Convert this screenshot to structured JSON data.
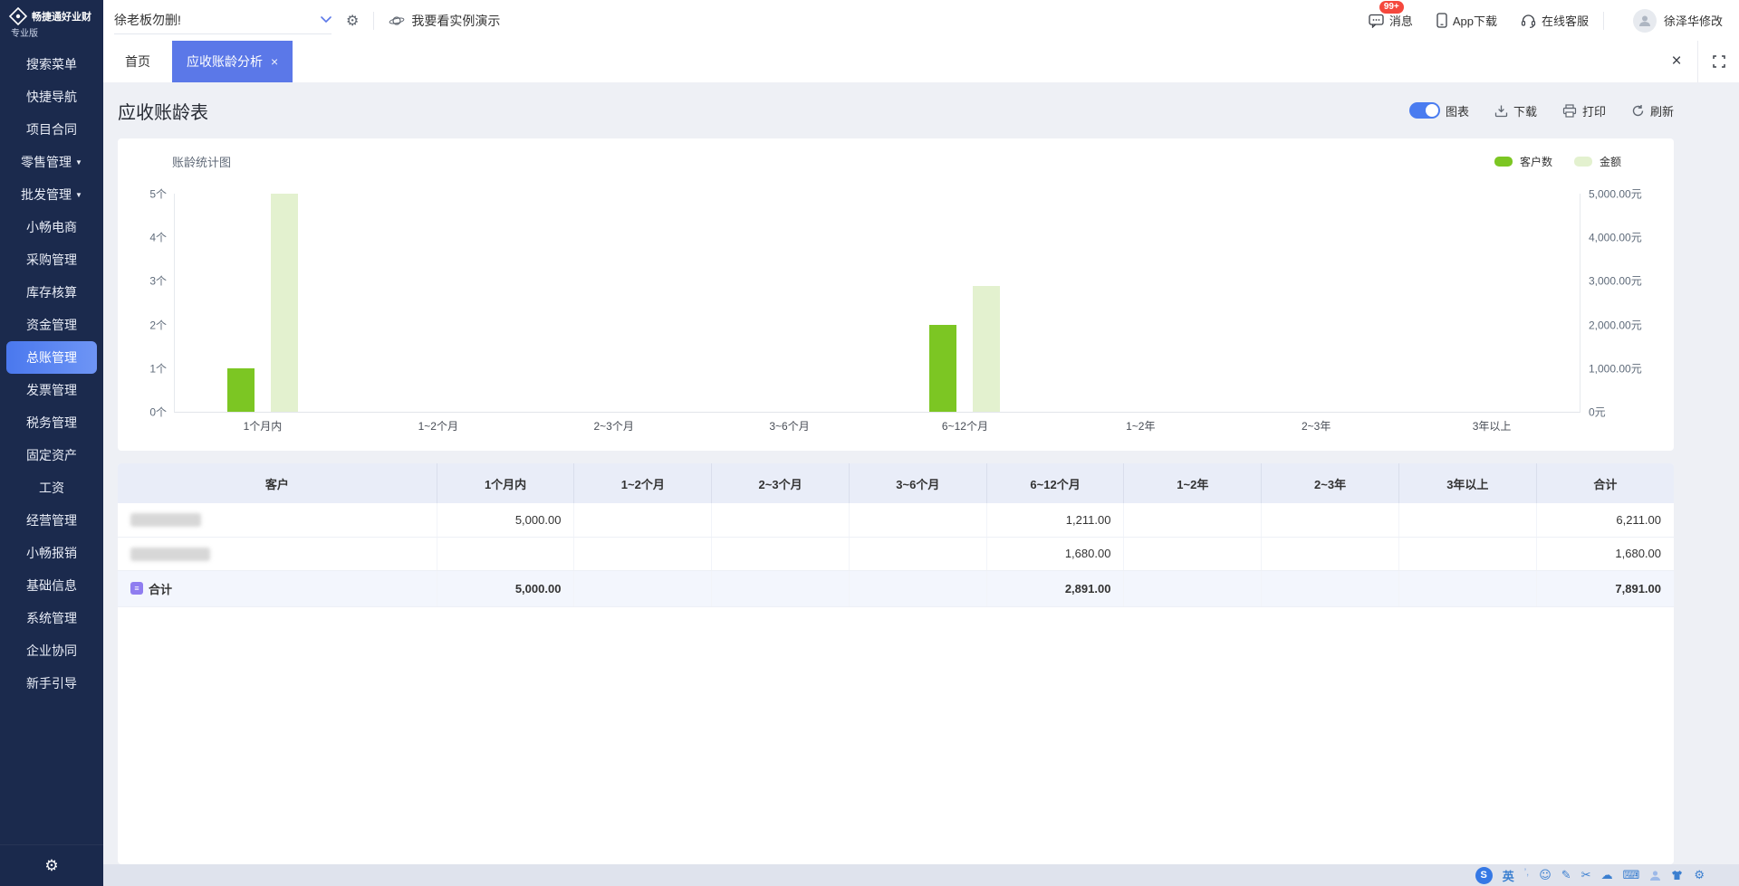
{
  "sidebar": {
    "brand": "畅捷通好业财",
    "edition": "专业版",
    "items": [
      {
        "label": "搜索菜单"
      },
      {
        "label": "快捷导航"
      },
      {
        "label": "项目合同"
      },
      {
        "label": "零售管理",
        "arrow": true
      },
      {
        "label": "批发管理",
        "arrow": true
      },
      {
        "label": "小畅电商"
      },
      {
        "label": "采购管理"
      },
      {
        "label": "库存核算"
      },
      {
        "label": "资金管理"
      },
      {
        "label": "总账管理",
        "active": true
      },
      {
        "label": "发票管理"
      },
      {
        "label": "税务管理"
      },
      {
        "label": "固定资产"
      },
      {
        "label": "工资"
      },
      {
        "label": "经营管理"
      },
      {
        "label": "小畅报销"
      },
      {
        "label": "基础信息"
      },
      {
        "label": "系统管理"
      },
      {
        "label": "企业协同"
      },
      {
        "label": "新手引导"
      }
    ]
  },
  "topbar": {
    "company": "徐老板勿删!",
    "demo_link": "我要看实例演示",
    "messages_label": "消息",
    "messages_badge": "99+",
    "app_download_label": "App下载",
    "support_label": "在线客服",
    "user_name": "徐泽华修改"
  },
  "tabs": [
    {
      "label": "首页",
      "active": false
    },
    {
      "label": "应收账龄分析",
      "active": true,
      "closable": true
    }
  ],
  "page": {
    "title": "应收账龄表",
    "chart_toggle_label": "图表",
    "chart_toggle_on": true,
    "download_label": "下载",
    "print_label": "打印",
    "refresh_label": "刷新"
  },
  "chart_data": {
    "type": "bar",
    "title": "账龄统计图",
    "categories": [
      "1个月内",
      "1~2个月",
      "2~3个月",
      "3~6个月",
      "6~12个月",
      "1~2年",
      "2~3年",
      "3年以上"
    ],
    "series": [
      {
        "name": "客户数",
        "axis": "left",
        "color": "#7cc623",
        "values": [
          1,
          0,
          0,
          0,
          2,
          0,
          0,
          0
        ]
      },
      {
        "name": "金额",
        "axis": "right",
        "color": "#e3f1cf",
        "values": [
          5000,
          0,
          0,
          0,
          2891,
          0,
          0,
          0
        ]
      }
    ],
    "left_axis": {
      "max": 5,
      "ticks": [
        "0个",
        "1个",
        "2个",
        "3个",
        "4个",
        "5个"
      ]
    },
    "right_axis": {
      "max": 5000,
      "ticks": [
        "0元",
        "1,000.00元",
        "2,000.00元",
        "3,000.00元",
        "4,000.00元",
        "5,000.00元"
      ]
    },
    "legend_position": "top-right",
    "grid": false
  },
  "table": {
    "columns": [
      "客户",
      "1个月内",
      "1~2个月",
      "2~3个月",
      "3~6个月",
      "6~12个月",
      "1~2年",
      "2~3年",
      "3年以上",
      "合计"
    ],
    "rows": [
      {
        "customer_redacted": true,
        "values": [
          "5,000.00",
          "",
          "",
          "",
          "1,211.00",
          "",
          "",
          "",
          "6,211.00"
        ]
      },
      {
        "customer_redacted": true,
        "values": [
          "",
          "",
          "",
          "",
          "1,680.00",
          "",
          "",
          "",
          "1,680.00"
        ]
      }
    ],
    "total_row": {
      "label": "合计",
      "values": [
        "5,000.00",
        "",
        "",
        "",
        "2,891.00",
        "",
        "",
        "",
        "7,891.00"
      ]
    }
  },
  "ime_bar": {
    "icons": [
      {
        "name": "sogou-logo-icon",
        "glyph": "S",
        "style": "logo"
      },
      {
        "name": "lang-indicator",
        "glyph": "英",
        "style": "lang"
      },
      {
        "name": "punctuation-icon",
        "glyph": "’,",
        "style": "small"
      },
      {
        "name": "emoji-icon",
        "glyph": "☺"
      },
      {
        "name": "handwriting-pencil-icon",
        "glyph": "✎"
      },
      {
        "name": "scissors-icon",
        "glyph": "✂"
      },
      {
        "name": "cloud-icon",
        "glyph": "☁"
      },
      {
        "name": "keyboard-icon",
        "glyph": "⌨"
      },
      {
        "name": "person-icon",
        "svg": "person"
      },
      {
        "name": "skin-tshirt-icon",
        "svg": "tshirt"
      },
      {
        "name": "ime-gear-icon",
        "glyph": "⚙"
      }
    ]
  },
  "colors": {
    "sidebar_bg": "#1b2a4d",
    "active_blue": "#5b78e8",
    "accent_blue": "#4a7cf0",
    "bar_green": "#7cc623",
    "bar_light_green": "#e3f1cf",
    "badge_red": "#f5483d",
    "content_bg": "#eef0f5",
    "table_header_bg": "#e9edf8",
    "total_row_bg": "#f3f6fd"
  }
}
